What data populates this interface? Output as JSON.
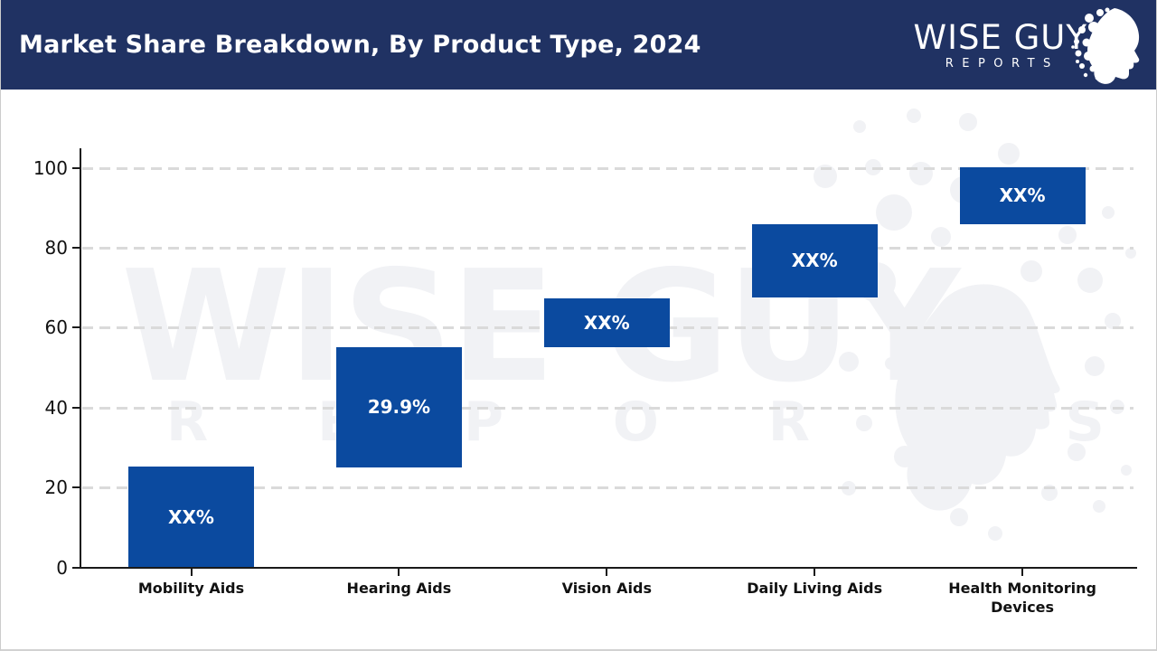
{
  "header": {
    "title": "Market Share Breakdown, By Product Type, 2024",
    "brand": {
      "line1": "WISE GUY",
      "line2": "REPORTS"
    }
  },
  "watermark": {
    "line1": "WISE GUY",
    "line2": "REPORTS"
  },
  "colors": {
    "header_bg": "#203263",
    "bar": "#0b4a9f",
    "bar_label": "#ffffff",
    "grid": "#dadada",
    "axis": "#1a1a1a",
    "watermark": "#f1f2f5"
  },
  "chart_data": {
    "type": "bar",
    "subtype": "floating-waterfall",
    "title": "Market Share Breakdown, By Product Type, 2024",
    "categories": [
      "Mobility Aids",
      "Hearing Aids",
      "Vision Aids",
      "Daily Living Aids",
      "Health Monitoring Devices"
    ],
    "segments": [
      {
        "category": "Mobility Aids",
        "start": 0,
        "end": 25.2,
        "label": "XX%"
      },
      {
        "category": "Hearing Aids",
        "start": 25.1,
        "end": 55.0,
        "label": "29.9%",
        "value": 29.9
      },
      {
        "category": "Vision Aids",
        "start": 55.0,
        "end": 67.4,
        "label": "XX%"
      },
      {
        "category": "Daily Living Aids",
        "start": 67.5,
        "end": 85.9,
        "label": "XX%"
      },
      {
        "category": "Health Monitoring Devices",
        "start": 85.9,
        "end": 100.2,
        "label": "XX%"
      }
    ],
    "yticks": [
      0,
      20,
      40,
      60,
      80,
      100
    ],
    "ylim": [
      0,
      105
    ],
    "xlabel": "",
    "ylabel": "",
    "grid": "horizontal-dashed",
    "legend": false
  }
}
